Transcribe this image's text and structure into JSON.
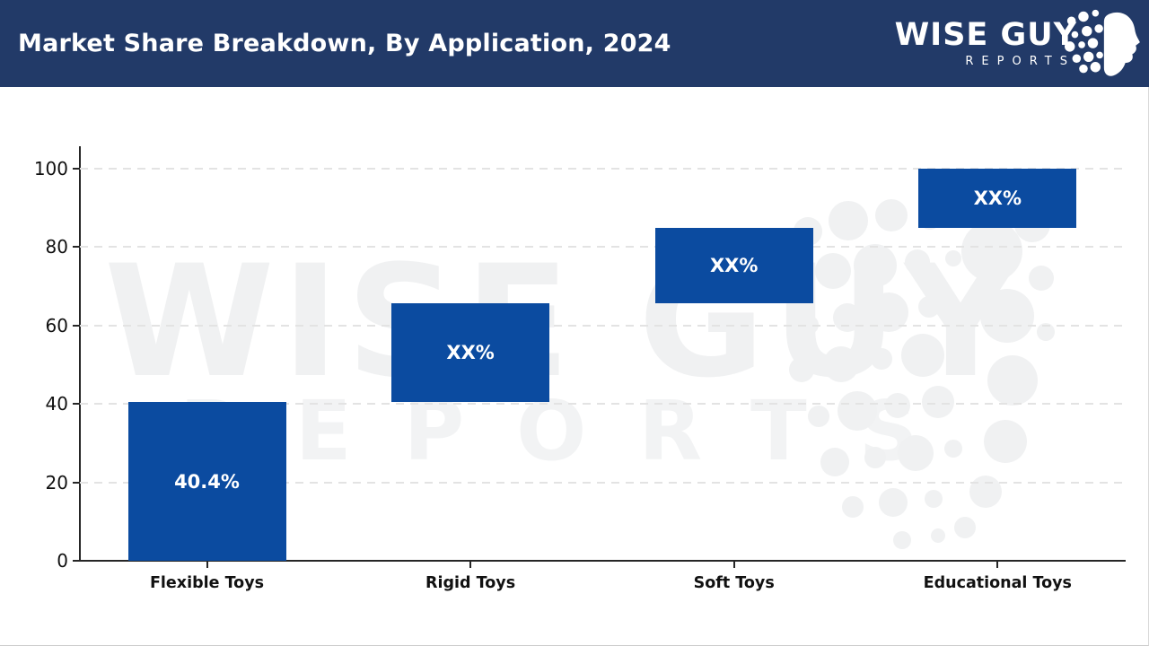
{
  "header": {
    "title": "Market Share Breakdown, By Application, 2024",
    "bg_color": "#223A68",
    "logo": {
      "line1": "WISE GUY",
      "line2": "REPORTS"
    }
  },
  "watermark": {
    "line1": "WISE GUY",
    "line2": "REPORTS"
  },
  "chart_data": {
    "type": "bar",
    "subtype": "floating-waterfall",
    "title": "Market Share Breakdown, By Application, 2024",
    "categories": [
      "Flexible Toys",
      "Rigid Toys",
      "Soft Toys",
      "Educational Toys"
    ],
    "bars": [
      {
        "category": "Flexible Toys",
        "start": 0,
        "end": 40.4,
        "label": "40.4%"
      },
      {
        "category": "Rigid Toys",
        "start": 40.4,
        "end": 65.7,
        "label": "XX%"
      },
      {
        "category": "Soft Toys",
        "start": 65.7,
        "end": 84.9,
        "label": "XX%"
      },
      {
        "category": "Educational Toys",
        "start": 84.9,
        "end": 100,
        "label": "XX%"
      }
    ],
    "yticks": [
      0,
      20,
      40,
      60,
      80,
      100
    ],
    "ylim": [
      0,
      105.6
    ],
    "xlabel": "",
    "ylabel": "",
    "grid": true,
    "legend": null,
    "bar_color": "#0B4BA0"
  }
}
